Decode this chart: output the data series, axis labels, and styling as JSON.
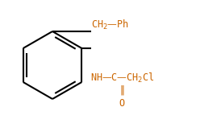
{
  "bg_color": "#ffffff",
  "line_color": "#000000",
  "text_color": "#cc6600",
  "figsize": [
    2.69,
    1.69
  ],
  "dpi": 100,
  "bond_lw": 1.5,
  "font_size_main": 8.5
}
